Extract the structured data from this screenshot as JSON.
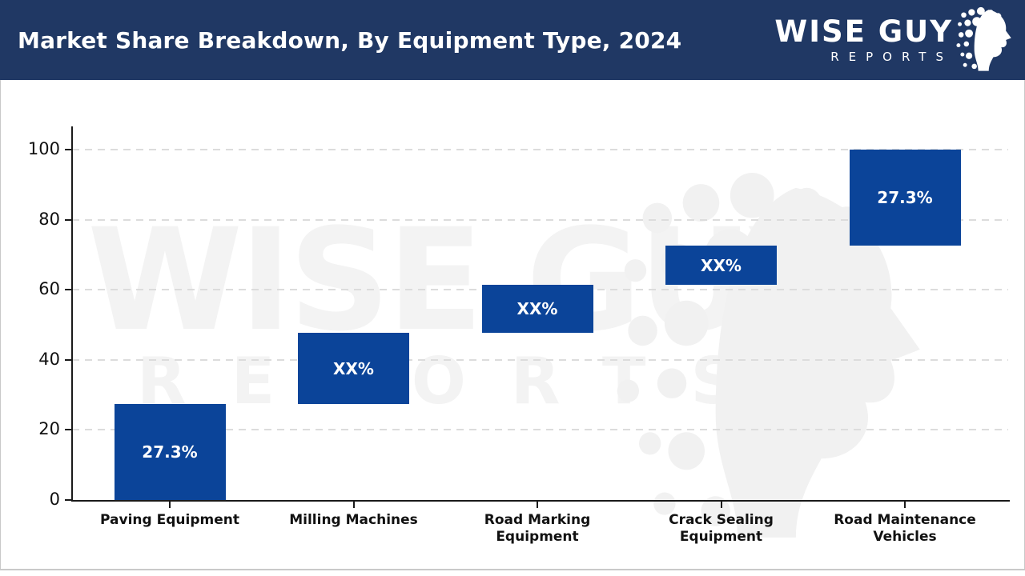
{
  "header": {
    "title": "Market Share Breakdown, By Equipment Type, 2024",
    "logo": {
      "line1": "WISE GUY",
      "line2": "REPORTS"
    }
  },
  "watermark": {
    "line1": "WISE GUY",
    "line2": "REPORTS"
  },
  "chart_data": {
    "type": "bar",
    "subtype": "waterfall",
    "title": "Market Share Breakdown, By Equipment Type, 2024",
    "xlabel": "",
    "ylabel": "",
    "ylim": [
      0,
      100
    ],
    "yticks": [
      0,
      20,
      40,
      60,
      80,
      100
    ],
    "grid": "horizontal-dashed",
    "legend": "none",
    "bar_color": "#0b4499",
    "bar_label_color": "#ffffff",
    "categories": [
      [
        "Paving Equipment"
      ],
      [
        "Milling Machines"
      ],
      [
        "Road Marking",
        "Equipment"
      ],
      [
        "Crack Sealing",
        "Equipment"
      ],
      [
        "Road Maintenance",
        "Vehicles"
      ]
    ],
    "segments": [
      {
        "category": "Paving Equipment",
        "start": 0,
        "end": 27.3,
        "label": "27.3%"
      },
      {
        "category": "Milling Machines",
        "start": 27.3,
        "end": 47.7,
        "label": "XX%"
      },
      {
        "category": "Road Marking Equipment",
        "start": 47.7,
        "end": 61.4,
        "label": "XX%"
      },
      {
        "category": "Crack Sealing Equipment",
        "start": 61.4,
        "end": 72.6,
        "label": "XX%"
      },
      {
        "category": "Road Maintenance Vehicles",
        "start": 72.7,
        "end": 100,
        "label": "27.3%"
      }
    ]
  }
}
